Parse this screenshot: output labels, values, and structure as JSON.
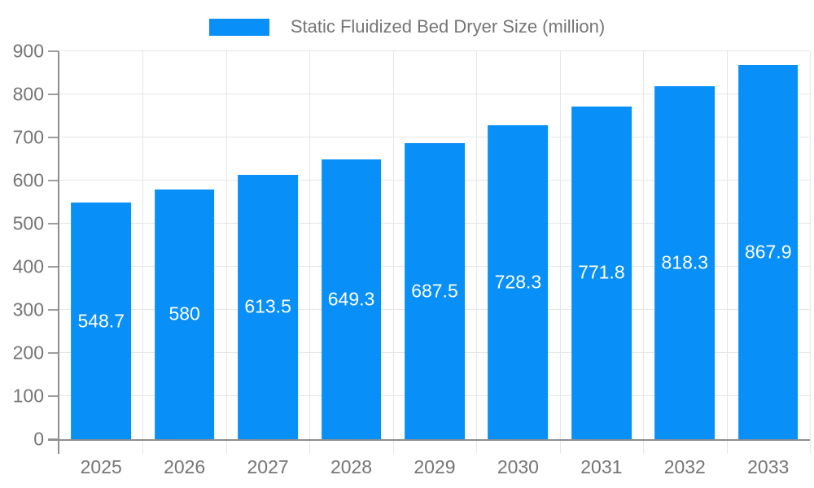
{
  "chart_data": {
    "type": "bar",
    "title": "Static Fluidized Bed Dryer Size (million)",
    "categories": [
      "2025",
      "2026",
      "2027",
      "2028",
      "2029",
      "2030",
      "2031",
      "2032",
      "2033"
    ],
    "values": [
      548.7,
      580,
      613.5,
      649.3,
      687.5,
      728.3,
      771.8,
      818.3,
      867.9
    ],
    "value_labels": [
      "548.7",
      "580",
      "613.5",
      "649.3",
      "687.5",
      "728.3",
      "771.8",
      "818.3",
      "867.9"
    ],
    "ylim": [
      0,
      900
    ],
    "ytick_step": 100,
    "ytick_labels": [
      "0",
      "100",
      "200",
      "300",
      "400",
      "500",
      "600",
      "700",
      "800",
      "900"
    ],
    "grid": true,
    "legend_position": "top",
    "value_label_position": "inside-center",
    "colors": {
      "bar": "#0890F8",
      "value_label": "#FFFFFF",
      "axis_line": "#8E8E8E",
      "gridline": "#E6E6E6",
      "tick": "#9E9E9E",
      "text": "#757575",
      "background": "#FFFFFF"
    }
  }
}
